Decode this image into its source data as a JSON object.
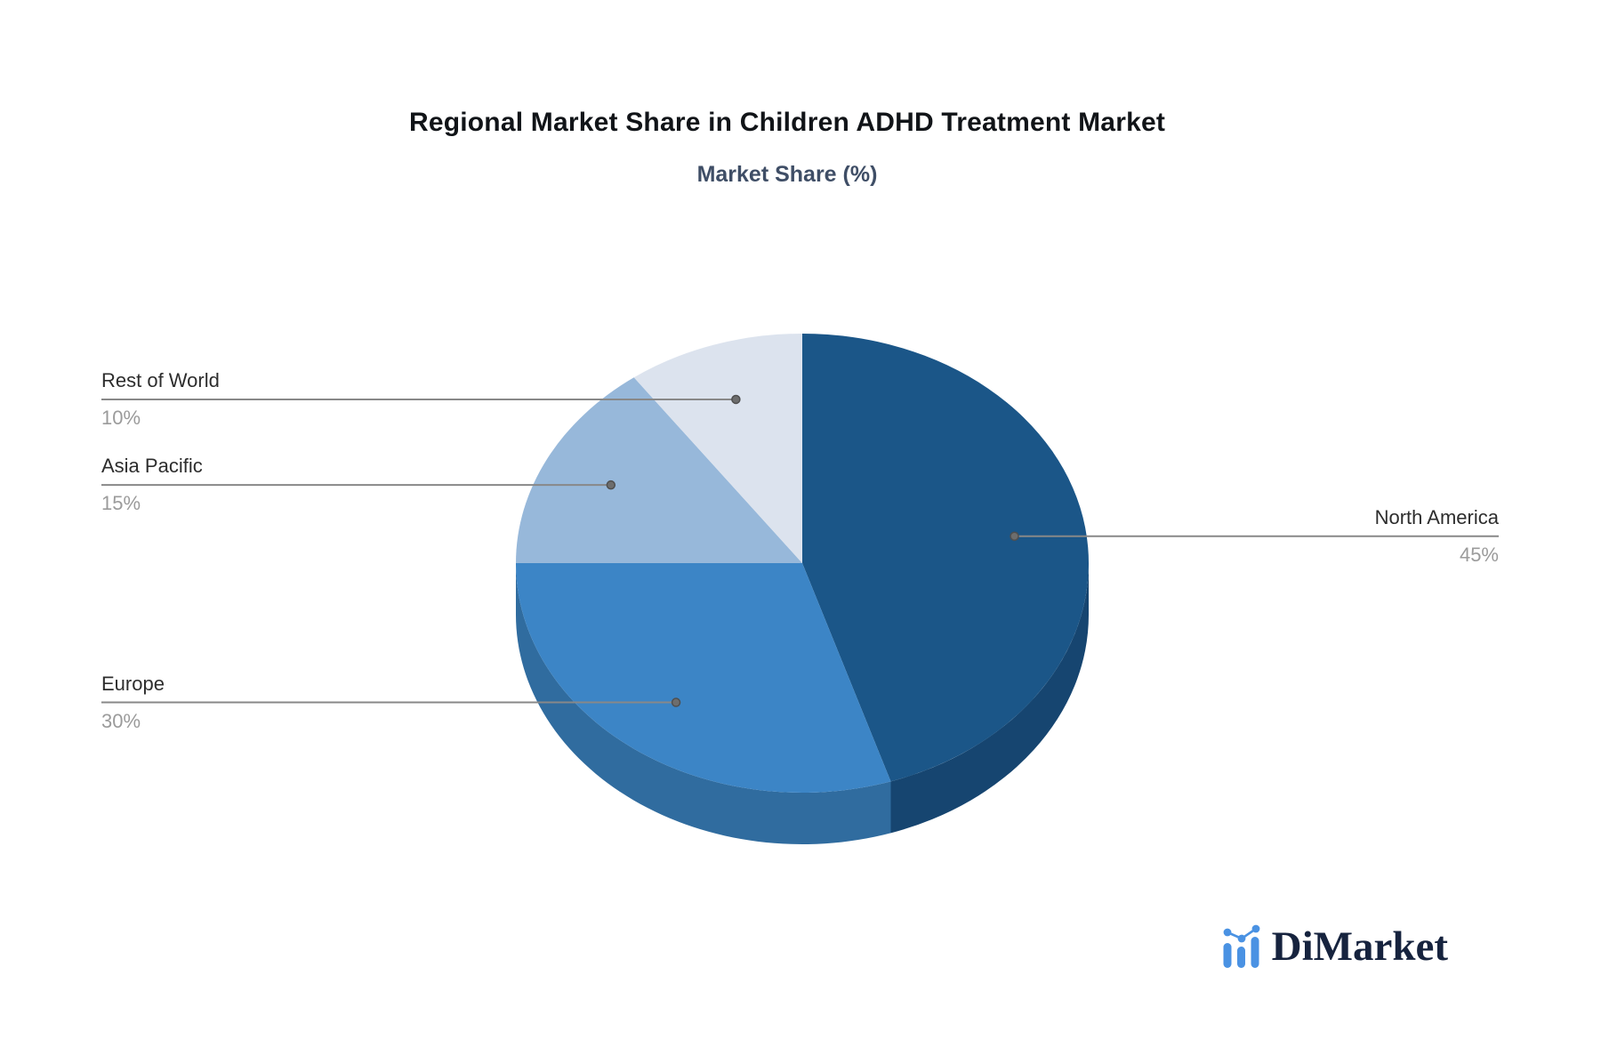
{
  "title": "Regional Market Share in Children ADHD Treatment Market",
  "subtitle": "Market Share (%)",
  "background": "#ffffff",
  "brand": {
    "name": "DiMarket",
    "icon": "bar-line-chart-icon",
    "accent": "#4a92e3",
    "text_color": "#16233e"
  },
  "callouts": [
    {
      "name": "North America",
      "pct": "45%",
      "side": "right"
    },
    {
      "name": "Europe",
      "pct": "30%",
      "side": "left"
    },
    {
      "name": "Asia Pacific",
      "pct": "15%",
      "side": "left"
    },
    {
      "name": "Rest of World",
      "pct": "10%",
      "side": "left"
    }
  ],
  "chart_data": {
    "type": "pie",
    "title": "Regional Market Share in Children ADHD Treatment Market",
    "subtitle": "Market Share (%)",
    "labels": [
      "North America",
      "Europe",
      "Asia Pacific",
      "Rest of World"
    ],
    "values": [
      45,
      30,
      15,
      10
    ],
    "unit": "%",
    "colors": [
      "#1b5688",
      "#3c85c6",
      "#97b8da",
      "#dce3ee"
    ],
    "side_colors": [
      "#164570",
      "#306c9f",
      "#7f9fc0",
      "#bcc8d8"
    ],
    "start_angle": "top",
    "direction": "clockwise",
    "style": "3d",
    "legend_position": "none",
    "label_style": {
      "leader_line_color": "#888888",
      "dot_color": "#6d6d6d",
      "dot_edge_color": "#4f4f4f",
      "label_color": "#2d2d2d",
      "value_color": "#9b9b9b"
    }
  }
}
